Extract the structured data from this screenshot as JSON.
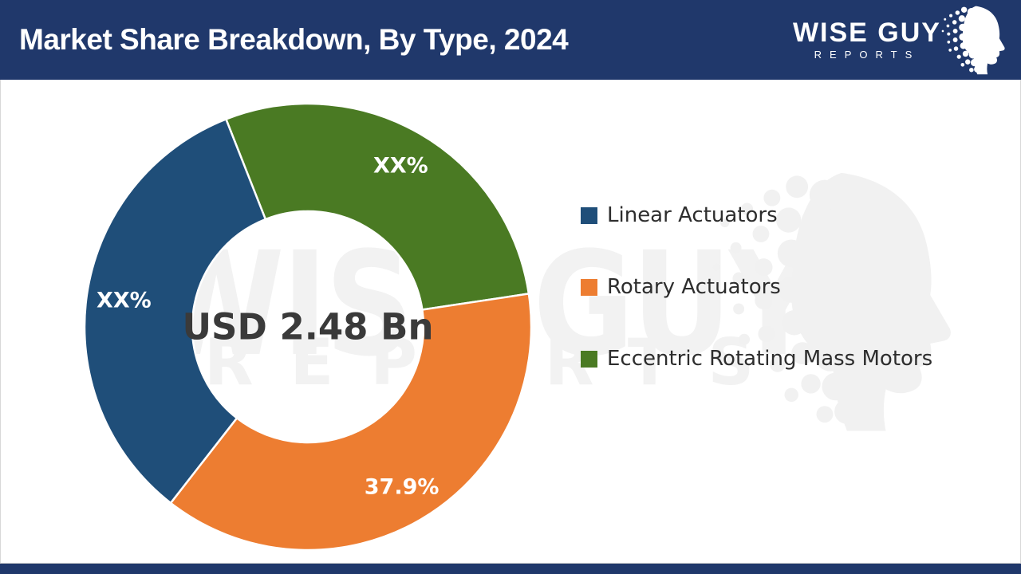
{
  "header": {
    "title": "Market Share Breakdown, By Type, 2024",
    "logo_primary": "WISE GUY",
    "logo_secondary": "REPORTS",
    "bg_color": "#20386B"
  },
  "watermark": {
    "line1": "WISE GUY",
    "line2": "REPORTS"
  },
  "chart_data": {
    "type": "donut",
    "title": "Market Share Breakdown, By Type, 2024",
    "center_label": "USD 2.48 Bn",
    "legend_position": "right",
    "start_angle_deg": 111.5,
    "direction": "counterclockwise",
    "slices": [
      {
        "name": "Linear Actuators",
        "label": "XX%",
        "value_pct": 33.5,
        "color": "#1F4E79"
      },
      {
        "name": "Rotary Actuators",
        "label": "37.9%",
        "value_pct": 37.9,
        "color": "#ED7D31"
      },
      {
        "name": "Eccentric Rotating Mass Motors",
        "label": "XX%",
        "value_pct": 28.6,
        "color": "#4A7A23"
      }
    ]
  }
}
